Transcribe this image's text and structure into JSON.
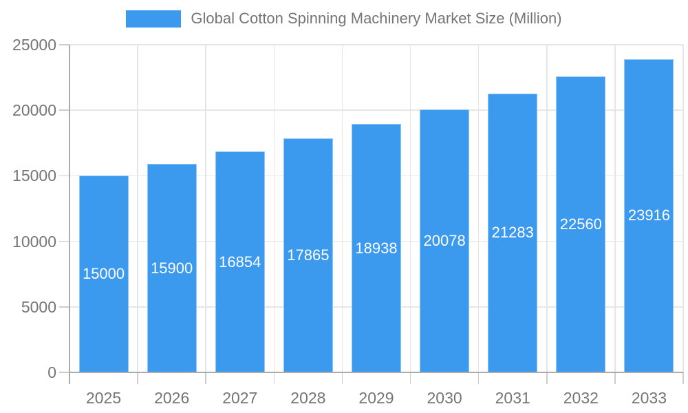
{
  "legend": {
    "label": "Global Cotton Spinning Machinery Market Size (Million)"
  },
  "chart_data": {
    "type": "bar",
    "title": "Global Cotton Spinning Machinery Market Size (Million)",
    "categories": [
      "2025",
      "2026",
      "2027",
      "2028",
      "2029",
      "2030",
      "2031",
      "2032",
      "2033"
    ],
    "values": [
      15000,
      15900,
      16854,
      17865,
      18938,
      20078,
      21283,
      22560,
      23916
    ],
    "xlabel": "",
    "ylabel": "",
    "ylim": [
      0,
      25000
    ],
    "y_ticks": [
      0,
      5000,
      10000,
      15000,
      20000,
      25000
    ],
    "grid": "both",
    "legend_position": "top-center",
    "value_labels": "inside-center",
    "colors": {
      "bar": "#3b99ee",
      "grid": "#e6e6e6",
      "axis": "#ababab",
      "tick": "#cccccc",
      "axis_text": "#757575",
      "value_label_text": "#ffffff"
    }
  }
}
